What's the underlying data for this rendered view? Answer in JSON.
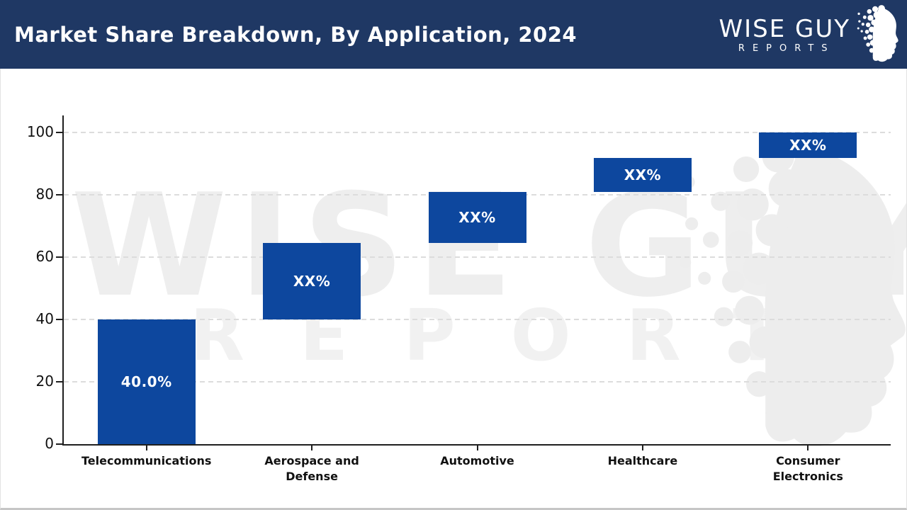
{
  "header": {
    "title": "Market Share Breakdown, By Application, 2024",
    "bg_color": "#1f3864",
    "logo": {
      "name": "WISE GUY",
      "sub": "REPORTS"
    }
  },
  "watermark": {
    "line1": "WISE GUY",
    "line2": "REPORTS"
  },
  "chart_data": {
    "type": "bar",
    "subtype": "waterfall",
    "title": "Market Share Breakdown, By Application, 2024",
    "categories": [
      "Telecommunications",
      "Aerospace and Defense",
      "Automotive",
      "Healthcare",
      "Consumer Electronics"
    ],
    "categories_display": [
      "Telecommunications",
      "Aerospace and\nDefense",
      "Automotive",
      "Healthcare",
      "Consumer\nElectronics"
    ],
    "segments": [
      {
        "category": "Telecommunications",
        "start": 0,
        "end": 40,
        "share": 40.0,
        "label": "40.0%"
      },
      {
        "category": "Aerospace and Defense",
        "start": 40,
        "end": 64.5,
        "share": 24.5,
        "label": "XX%"
      },
      {
        "category": "Automotive",
        "start": 64.5,
        "end": 81,
        "share": 16.5,
        "label": "XX%"
      },
      {
        "category": "Healthcare",
        "start": 81,
        "end": 91.8,
        "share": 10.8,
        "label": "XX%"
      },
      {
        "category": "Consumer Electronics",
        "start": 91.8,
        "end": 100,
        "share": 8.2,
        "label": "XX%"
      }
    ],
    "ylim": [
      0,
      100
    ],
    "yticks": [
      0,
      20,
      40,
      60,
      80,
      100
    ],
    "grid": "horizontal-dashed",
    "legend": "none",
    "xlabel": "",
    "ylabel": "",
    "bar_color": "#0d479e",
    "bar_label_color": "#ffffff",
    "gridline_color": "#dcdcdc",
    "axis_color": "#1f1f1f"
  }
}
